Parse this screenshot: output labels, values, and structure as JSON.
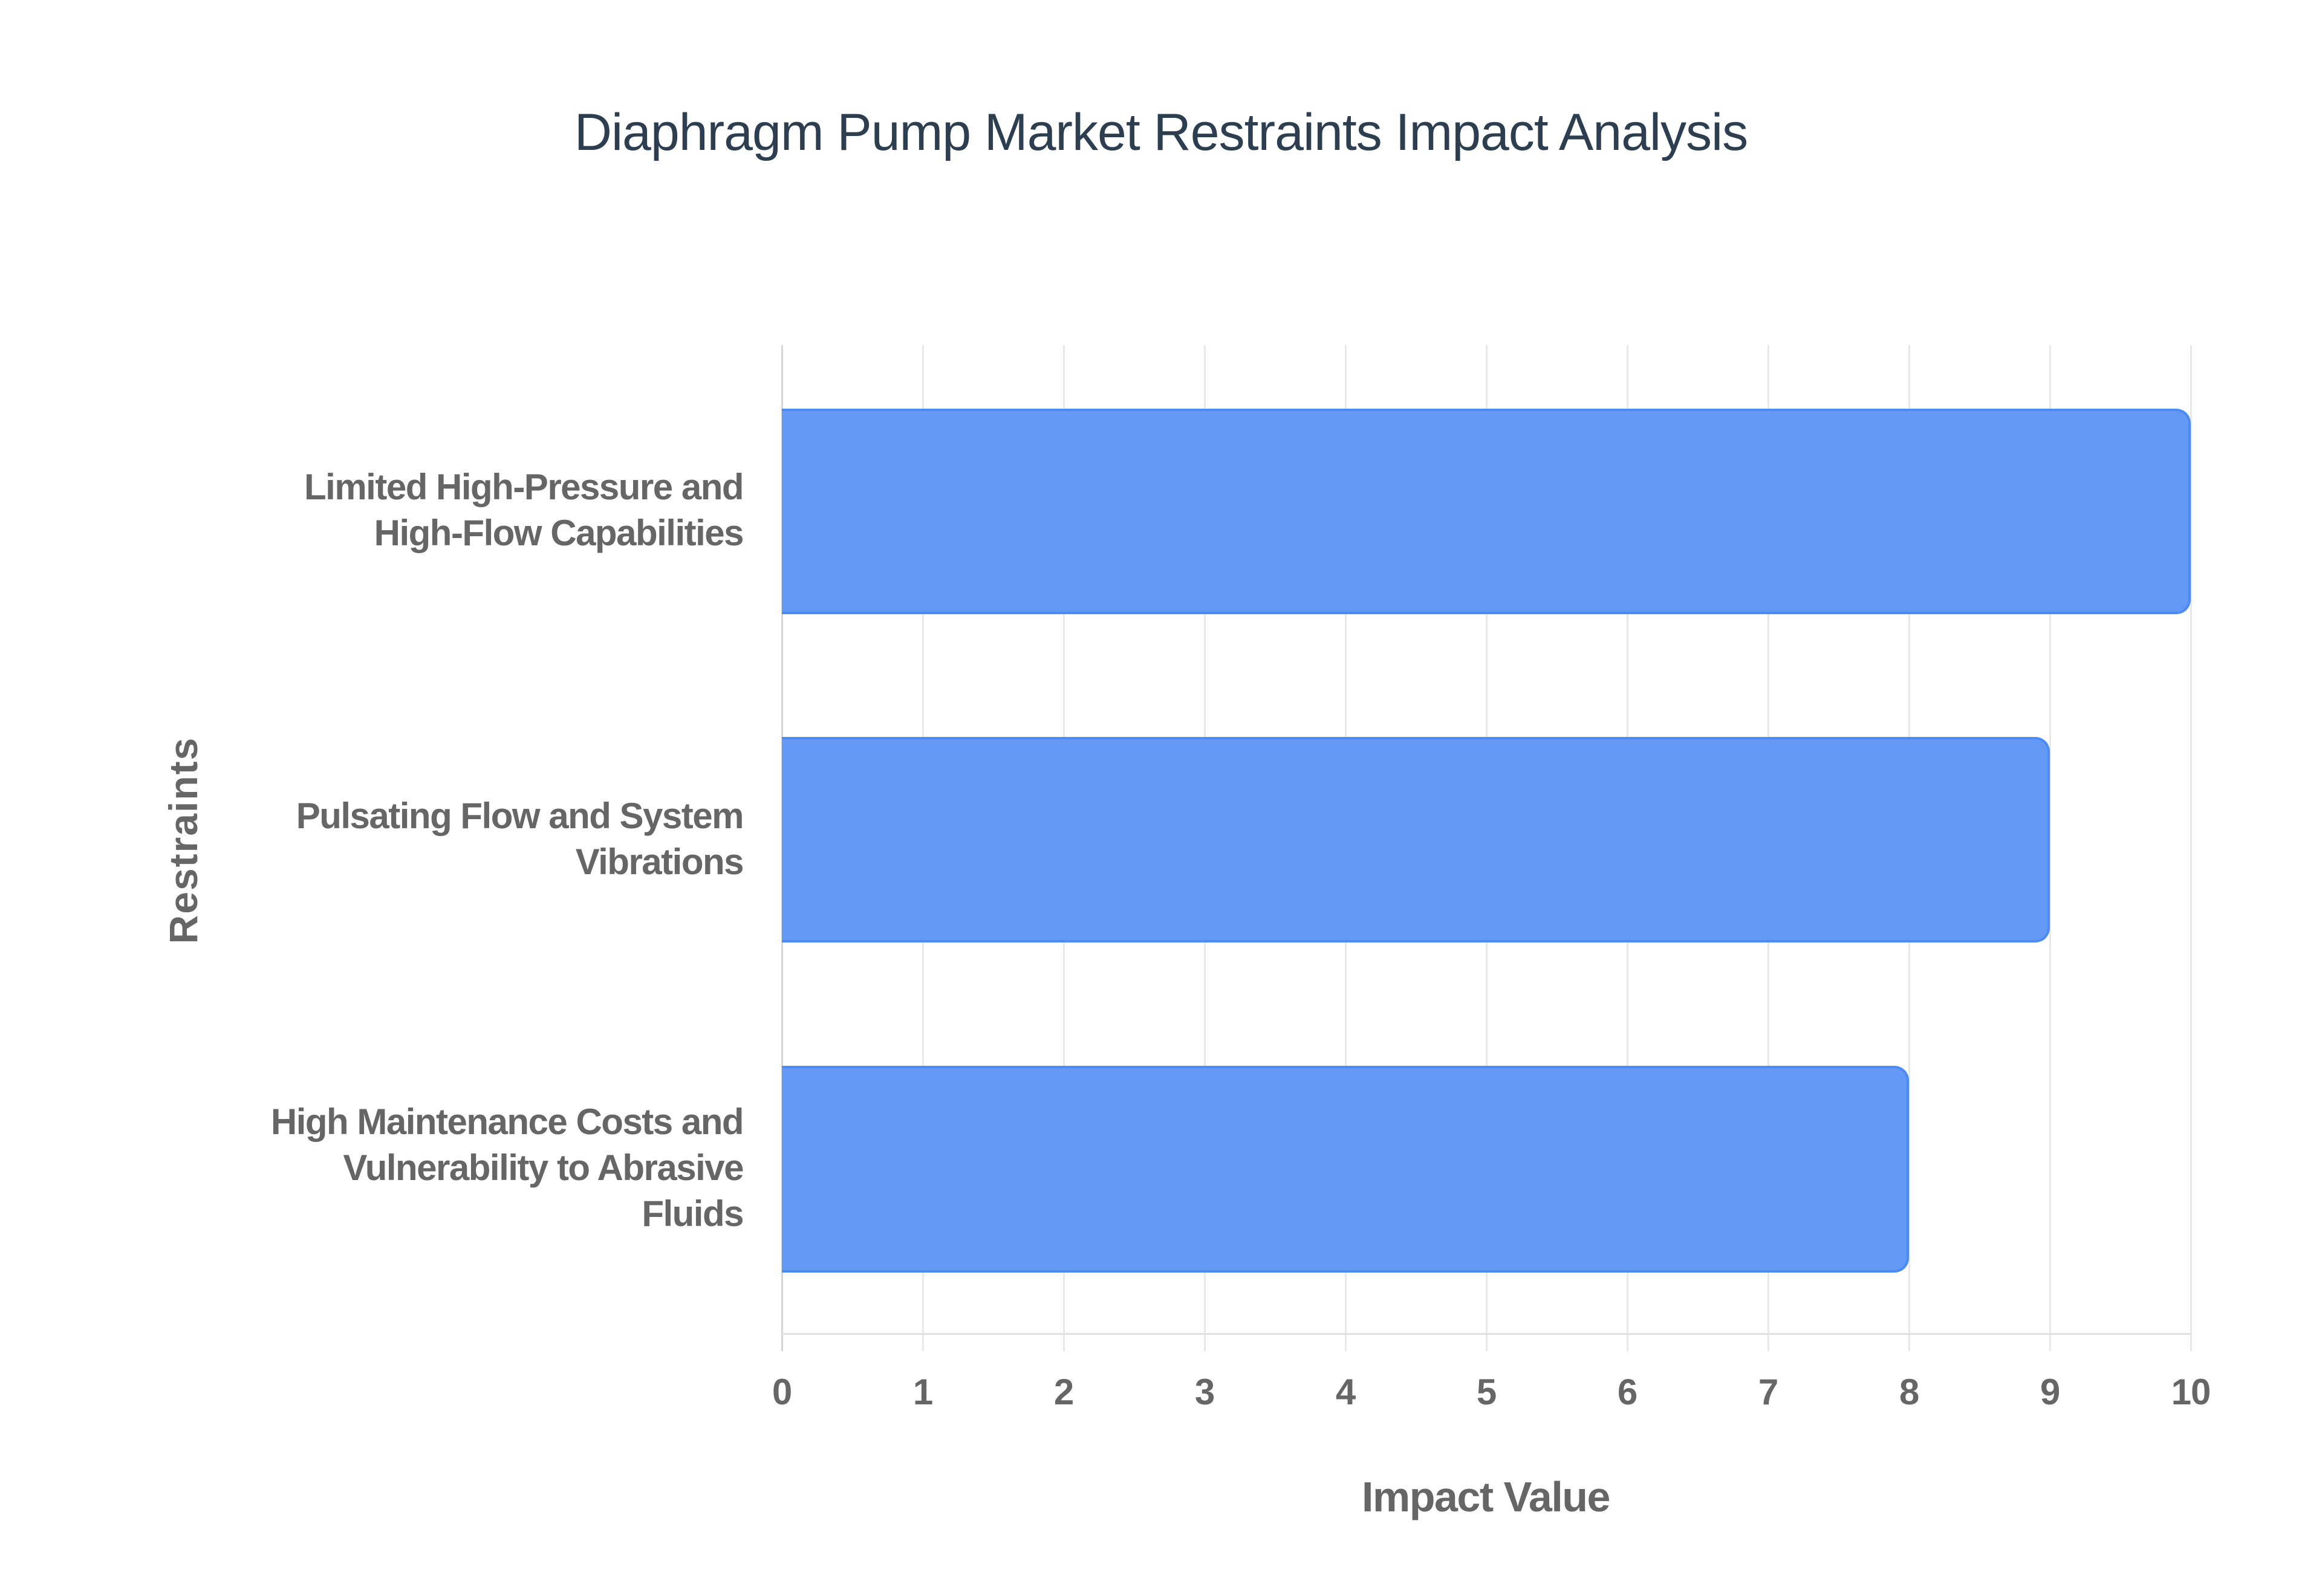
{
  "title": "Diaphragm Pump Market Restraints Impact Analysis",
  "colors": {
    "bar_fill": "#6399F5",
    "bar_border": "#4B8CF3",
    "title": "#2C3E50",
    "labels": "#666666",
    "grid": "#E8E8E8"
  },
  "axes": {
    "x_title": "Impact Value",
    "y_title": "Restraints",
    "x_ticks": [
      "0",
      "1",
      "2",
      "3",
      "4",
      "5",
      "6",
      "7",
      "8",
      "9",
      "10"
    ]
  },
  "categories": [
    {
      "lines": [
        "Limited High-Pressure and",
        "High-Flow Capabilities"
      ],
      "value": 10
    },
    {
      "lines": [
        "Pulsating Flow and System",
        "Vibrations"
      ],
      "value": 9
    },
    {
      "lines": [
        "High Maintenance Costs and",
        "Vulnerability to Abrasive",
        "Fluids"
      ],
      "value": 8
    }
  ],
  "chart_data": {
    "type": "bar",
    "orientation": "horizontal",
    "title": "Diaphragm Pump Market Restraints Impact Analysis",
    "categories": [
      "Limited High-Pressure and High-Flow Capabilities",
      "Pulsating Flow and System Vibrations",
      "High Maintenance Costs and Vulnerability to Abrasive Fluids"
    ],
    "values": [
      10,
      9,
      8
    ],
    "xlabel": "Impact Value",
    "ylabel": "Restraints",
    "xlim": [
      0,
      10
    ],
    "x_ticks": [
      0,
      1,
      2,
      3,
      4,
      5,
      6,
      7,
      8,
      9,
      10
    ],
    "grid": true,
    "legend": "none"
  }
}
